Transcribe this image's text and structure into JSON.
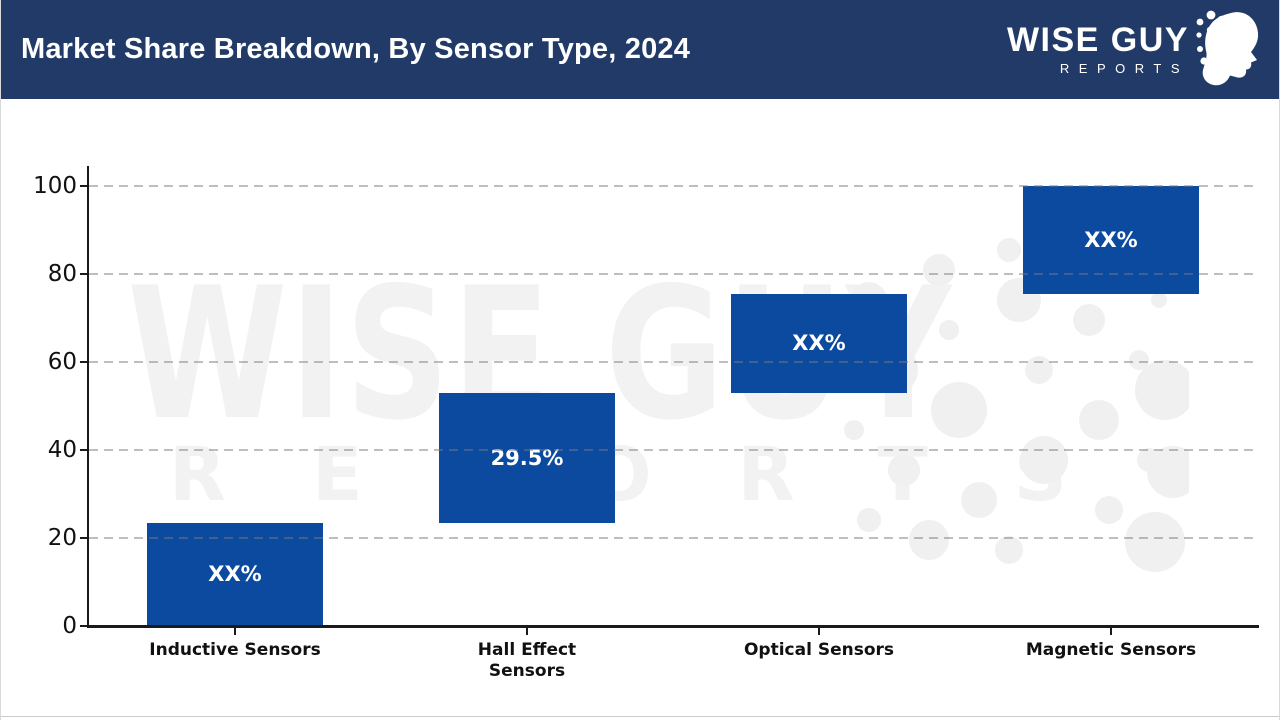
{
  "header": {
    "title": "Market Share Breakdown, By Sensor Type, 2024",
    "bg_color": "#213a67",
    "logo": {
      "name": "WISE GUY",
      "sub": "REPORTS"
    }
  },
  "watermark": {
    "name": "WISE GUY",
    "sub": "REPORTS"
  },
  "chart_data": {
    "type": "bar",
    "subtype": "floating-waterfall",
    "title": "Market Share Breakdown, By Sensor Type, 2024",
    "categories": [
      "Inductive Sensors",
      "Hall Effect\nSensors",
      "Optical Sensors",
      "Magnetic Sensors"
    ],
    "segments": [
      {
        "category": "Inductive Sensors",
        "start": 0,
        "end": 23.5,
        "label": "XX%"
      },
      {
        "category": "Hall Effect Sensors",
        "start": 23.5,
        "end": 53,
        "label": "29.5%"
      },
      {
        "category": "Optical Sensors",
        "start": 53,
        "end": 75.5,
        "label": "XX%"
      },
      {
        "category": "Magnetic Sensors",
        "start": 75.5,
        "end": 100,
        "label": "XX%"
      }
    ],
    "ylim": [
      0,
      100
    ],
    "yticks": [
      0,
      20,
      40,
      60,
      80,
      100
    ],
    "xlabel": "",
    "ylabel": "",
    "legend": "none",
    "grid": "horizontal dashed lines drawn over bars",
    "bar_color": "#0c4aa0",
    "bar_label_color": "#ffffff"
  }
}
